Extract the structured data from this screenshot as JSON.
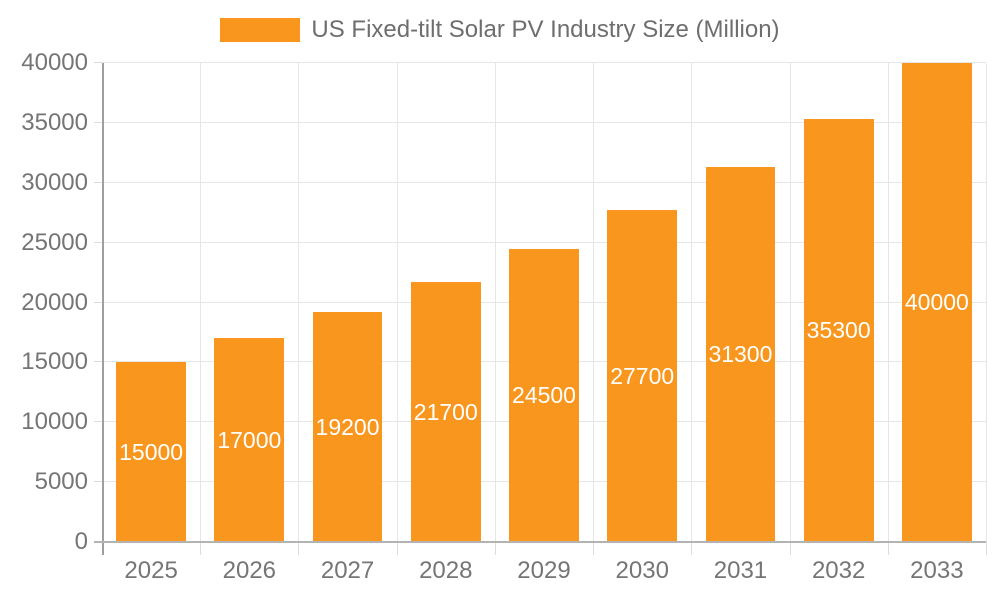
{
  "chart_data": {
    "type": "bar",
    "title": "US Fixed-tilt Solar PV Industry Size (Million)",
    "categories": [
      "2025",
      "2026",
      "2027",
      "2028",
      "2029",
      "2030",
      "2031",
      "2032",
      "2033"
    ],
    "values": [
      15000,
      17000,
      19200,
      21700,
      24500,
      27700,
      31300,
      35300,
      40000
    ],
    "xlabel": "",
    "ylabel": "",
    "ylim": [
      0,
      40000
    ],
    "ytick_step": 5000,
    "ytick_labels": [
      "0",
      "5000",
      "10000",
      "15000",
      "20000",
      "25000",
      "30000",
      "35000",
      "40000"
    ],
    "grid": true,
    "legend_position": "top-center",
    "value_labels": "inside-center",
    "colors": {
      "bar": "#F8961E",
      "value_label": "#FFFFFF",
      "axis_text": "#757575",
      "grid_line": "#E6E6E6",
      "tick": "#DCDCDC",
      "y_axis_line": "#9E9E9E",
      "x_axis_line": "#B3B3B3",
      "background": "#FFFFFF"
    }
  }
}
